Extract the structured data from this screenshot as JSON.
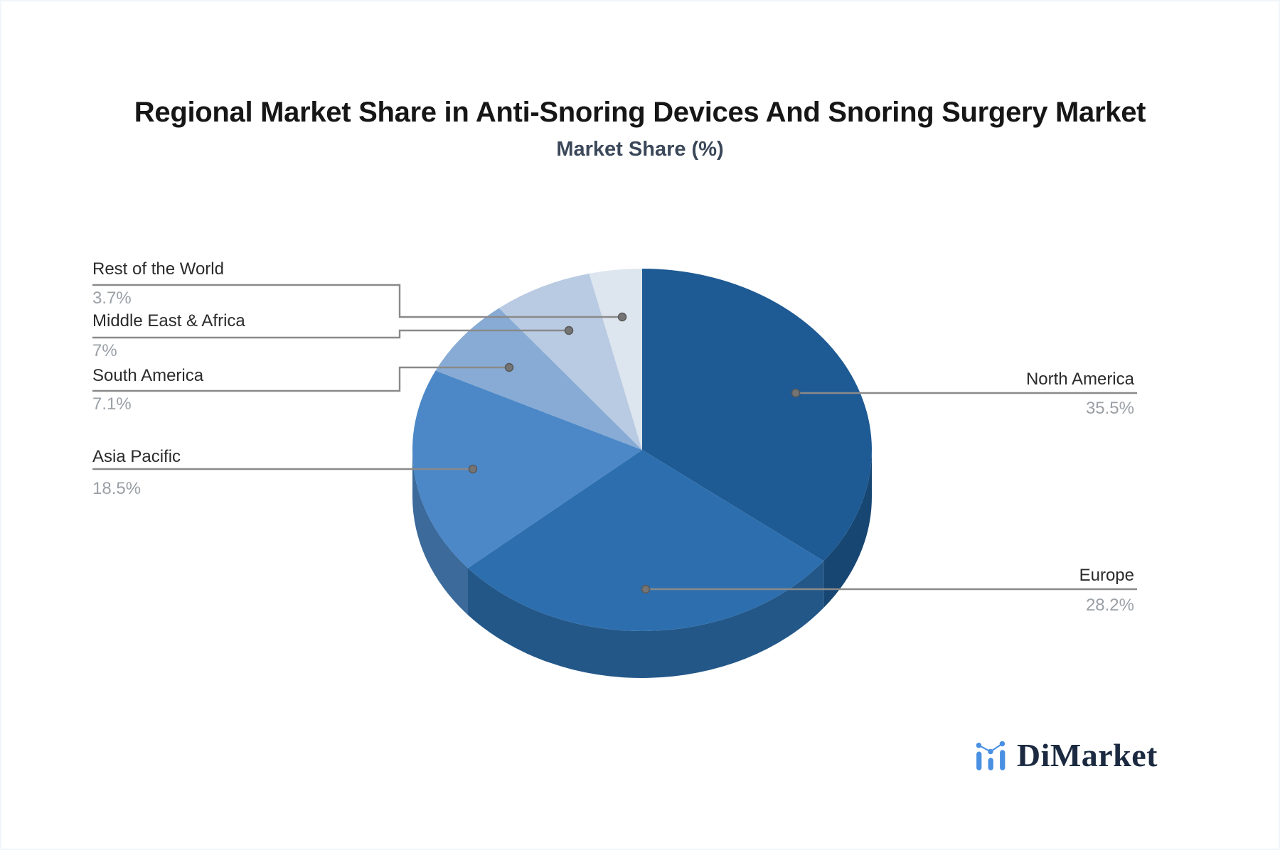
{
  "chart_data": {
    "type": "pie",
    "style": "3d",
    "title": "Regional Market Share in Anti-Snoring Devices And Snoring Surgery Market",
    "subtitle": "Market Share (%)",
    "unit": "%",
    "direction": "clockwise",
    "start_angle_deg": 0,
    "legend_position": "callout-labels",
    "label_line_color": "#8a8a8a",
    "series": [
      {
        "name": "North America",
        "value": 35.5,
        "pct_label": "35.5%",
        "color": "#1e5a94"
      },
      {
        "name": "Europe",
        "value": 28.2,
        "pct_label": "28.2%",
        "color": "#2d6fae"
      },
      {
        "name": "Asia Pacific",
        "value": 18.5,
        "pct_label": "18.5%",
        "color": "#4c88c7"
      },
      {
        "name": "South America",
        "value": 7.1,
        "pct_label": "7.1%",
        "color": "#87abd4"
      },
      {
        "name": "Middle East & Africa",
        "value": 7,
        "pct_label": "7%",
        "color": "#b9cbe2"
      },
      {
        "name": "Rest of the World",
        "value": 3.7,
        "pct_label": "3.7%",
        "color": "#dde5ef"
      }
    ]
  },
  "logo": {
    "text": "DiMarket",
    "icon": "dimarket-bars-icon",
    "icon_color": "#4a90e2",
    "text_color": "#1b2a40"
  }
}
